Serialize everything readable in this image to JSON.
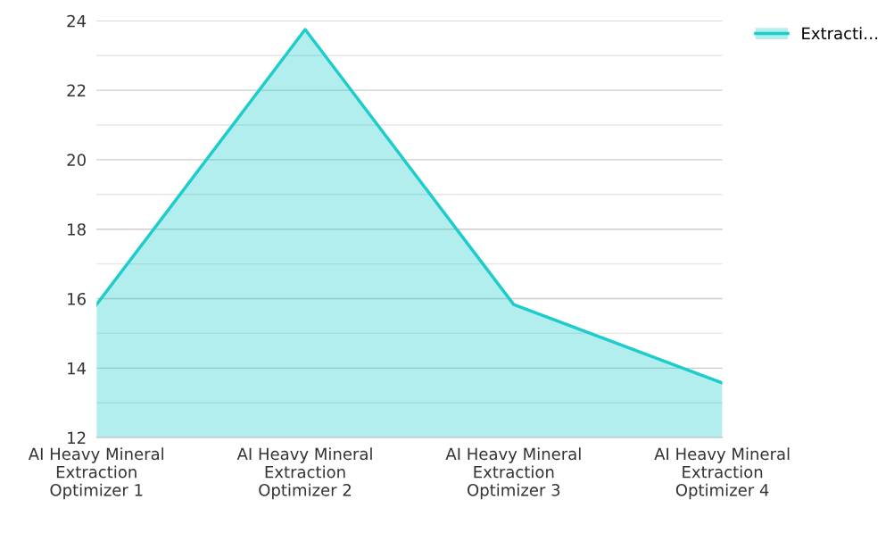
{
  "chart_data": {
    "type": "area",
    "categories": [
      "AI Heavy Mineral\nExtraction\nOptimizer 1",
      "AI Heavy Mineral\nExtraction\nOptimizer 2",
      "AI Heavy Mineral\nExtraction\nOptimizer 3",
      "AI Heavy Mineral\nExtraction\nOptimizer 4"
    ],
    "series": [
      {
        "name": "Extracti…",
        "color": "#1ecccc",
        "values": [
          15.83,
          23.75,
          15.83,
          13.57
        ]
      }
    ],
    "ylim": [
      12,
      24
    ],
    "yticks": [
      12,
      {
        "value": 13,
        "label": null
      },
      14,
      {
        "value": 15,
        "label": null
      },
      16,
      {
        "value": 17,
        "label": null
      },
      18,
      {
        "value": 19,
        "label": null
      },
      20,
      {
        "value": 21,
        "label": null
      },
      22,
      {
        "value": 23,
        "label": null
      },
      24
    ],
    "grid": "y",
    "legend": "top right"
  }
}
